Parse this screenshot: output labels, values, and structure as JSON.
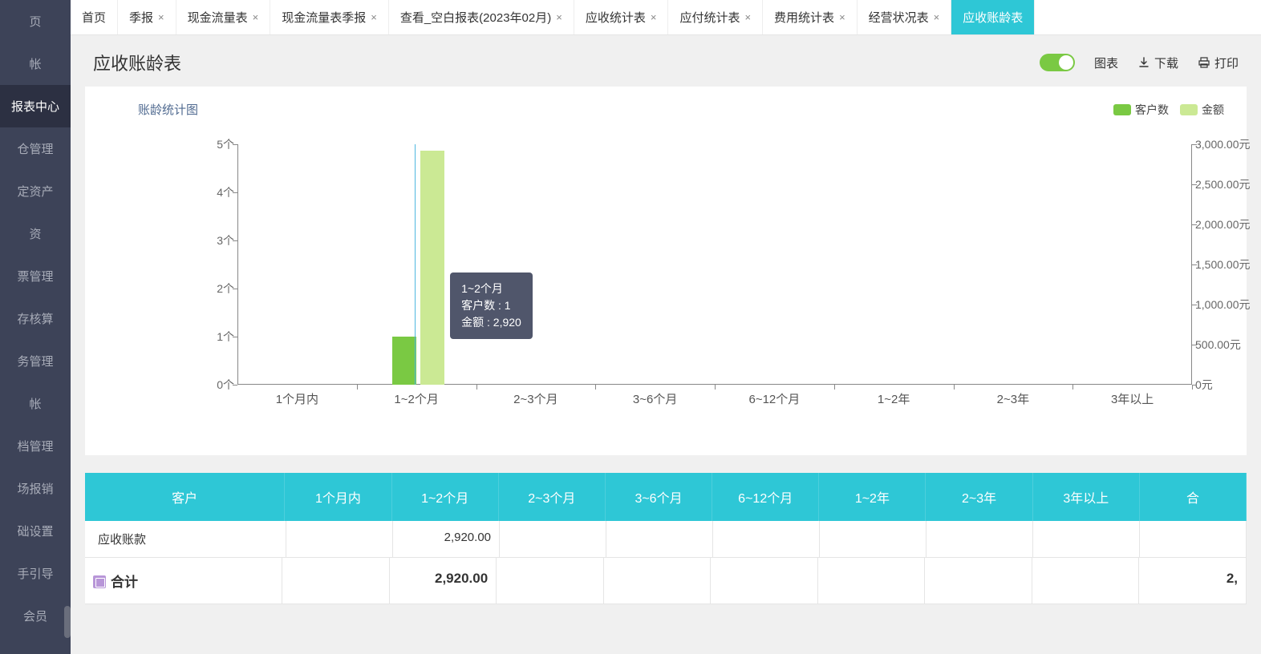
{
  "sidebar": {
    "items": [
      {
        "label": "页"
      },
      {
        "label": "帐"
      },
      {
        "label": "报表中心",
        "active": true
      },
      {
        "label": "仓管理"
      },
      {
        "label": "定资产"
      },
      {
        "label": "资"
      },
      {
        "label": "票管理"
      },
      {
        "label": "存核算"
      },
      {
        "label": "务管理"
      },
      {
        "label": "帐"
      },
      {
        "label": "档管理"
      },
      {
        "label": "场报销"
      },
      {
        "label": "础设置"
      },
      {
        "label": "手引导"
      },
      {
        "label": "会员"
      }
    ]
  },
  "tabs": [
    {
      "label": "首页",
      "closeable": false
    },
    {
      "label": "季报",
      "closeable": true
    },
    {
      "label": "现金流量表",
      "closeable": true
    },
    {
      "label": "现金流量表季报",
      "closeable": true
    },
    {
      "label": "查看_空白报表(2023年02月)",
      "closeable": true
    },
    {
      "label": "应收统计表",
      "closeable": true
    },
    {
      "label": "应付统计表",
      "closeable": true
    },
    {
      "label": "费用统计表",
      "closeable": true
    },
    {
      "label": "经营状况表",
      "closeable": true
    },
    {
      "label": "应收账龄表",
      "closeable": false,
      "active": true
    }
  ],
  "header": {
    "title": "应收账龄表",
    "toggle_label": "图表",
    "download": "下载",
    "print": "打印"
  },
  "chart": {
    "title": "账龄统计图",
    "type": "bar",
    "legend": [
      {
        "label": "客户数",
        "color": "#7ac943"
      },
      {
        "label": "金额",
        "color": "#cbe994"
      }
    ],
    "categories": [
      "1个月内",
      "1~2个月",
      "2~3个月",
      "3~6个月",
      "6~12个月",
      "1~2年",
      "2~3年",
      "3年以上"
    ],
    "series": {
      "customers": [
        0,
        1,
        0,
        0,
        0,
        0,
        0,
        0
      ],
      "amount": [
        0,
        2920,
        0,
        0,
        0,
        0,
        0,
        0
      ]
    },
    "y_left": {
      "min": 0,
      "max": 5,
      "step": 1,
      "suffix": "个"
    },
    "y_right": {
      "min": 0,
      "max": 3000,
      "step": 500,
      "suffix": "元",
      "decimals": 2
    },
    "bar_colors": {
      "customers": "#7ac943",
      "amount": "#cbe994"
    },
    "tooltip": {
      "title": "1~2个月",
      "l1": "客户数 : 1",
      "l2": "金额 : 2,920"
    },
    "background_color": "#ffffff",
    "axis_color": "#888888",
    "label_color": "#555555"
  },
  "table": {
    "columns": [
      "客户",
      "1个月内",
      "1~2个月",
      "2~3个月",
      "3~6个月",
      "6~12个月",
      "1~2年",
      "2~3年",
      "3年以上",
      "合"
    ],
    "rows": [
      {
        "label": "应收账款",
        "cells": [
          "",
          "",
          "2,920.00",
          "",
          "",
          "",
          "",
          "",
          "",
          ""
        ]
      }
    ],
    "total": {
      "label": "合计",
      "cells": [
        "",
        "",
        "2,920.00",
        "",
        "",
        "",
        "",
        "",
        "",
        "2,"
      ]
    }
  }
}
